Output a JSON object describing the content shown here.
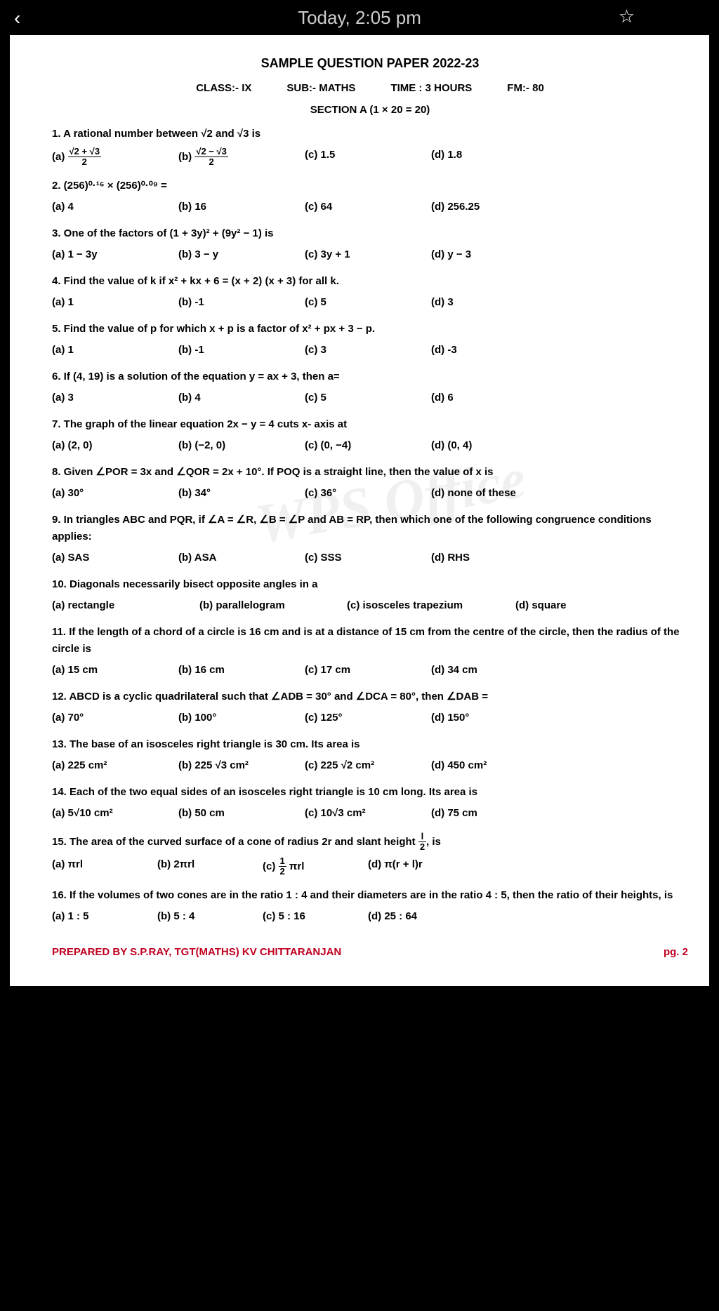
{
  "header": {
    "title": "Today, 2:05 pm"
  },
  "paper": {
    "title": "SAMPLE QUESTION PAPER 2022-23",
    "class": "CLASS:- IX",
    "subject": "SUB:- MATHS",
    "time": "TIME : 3 HOURS",
    "fm": "FM:- 80",
    "section": "SECTION A (1 × 20 = 20)"
  },
  "q1": {
    "text": "1. A rational number between √2 and √3 is",
    "c": "(c) 1.5",
    "d": "(d) 1.8"
  },
  "q2": {
    "text": "2. (256)⁰·¹⁶ × (256)⁰·⁰⁹ =",
    "a": "(a) 4",
    "b": "(b) 16",
    "c": "(c) 64",
    "d": "(d) 256.25"
  },
  "q3": {
    "text": "3. One of the factors of (1 + 3y)² + (9y² − 1) is",
    "a": "(a) 1 − 3y",
    "b": "(b) 3 − y",
    "c": "(c) 3y + 1",
    "d": "(d) y − 3"
  },
  "q4": {
    "text": "4. Find the value of k if x² + kx + 6 = (x + 2) (x + 3) for all k.",
    "a": "(a) 1",
    "b": "(b) -1",
    "c": "(c) 5",
    "d": "(d) 3"
  },
  "q5": {
    "text": "5. Find the value of p for which x + p is a factor of x² + px + 3 − p.",
    "a": "(a) 1",
    "b": "(b) -1",
    "c": "(c) 3",
    "d": "(d) -3"
  },
  "q6": {
    "text": "6. If (4, 19) is a solution of the equation y = ax + 3, then a=",
    "a": "(a) 3",
    "b": "(b) 4",
    "c": "(c) 5",
    "d": "(d) 6"
  },
  "q7": {
    "text": "7. The graph of the linear equation 2x − y = 4 cuts x- axis at",
    "a": "(a) (2, 0)",
    "b": "(b) (−2, 0)",
    "c": "(c) (0, −4)",
    "d": "(d) (0, 4)"
  },
  "q8": {
    "text": "8. Given ∠POR = 3x and ∠QOR = 2x + 10°. If POQ is a straight line, then the value of x is",
    "a": "(a) 30°",
    "b": "(b) 34°",
    "c": "(c) 36°",
    "d": "(d) none of these"
  },
  "q9": {
    "text": "9. In triangles ABC and PQR, if ∠A = ∠R, ∠B = ∠P and AB = RP, then which one of the following congruence conditions applies:",
    "a": "(a) SAS",
    "b": "(b) ASA",
    "c": "(c) SSS",
    "d": "(d) RHS"
  },
  "q10": {
    "text": "10. Diagonals necessarily bisect opposite angles in a",
    "a": "(a) rectangle",
    "b": "(b) parallelogram",
    "c": "(c) isosceles trapezium",
    "d": "(d) square"
  },
  "q11": {
    "text": "11. If the length of a chord of a circle is 16 cm and is at a distance of 15 cm from the centre of the circle, then the radius of the circle is",
    "a": "(a) 15 cm",
    "b": "(b) 16 cm",
    "c": "(c) 17 cm",
    "d": "(d) 34 cm"
  },
  "q12": {
    "text": "12. ABCD is a cyclic quadrilateral such that ∠ADB = 30° and ∠DCA = 80°, then ∠DAB =",
    "a": "(a) 70°",
    "b": "(b) 100°",
    "c": "(c) 125°",
    "d": "(d) 150°"
  },
  "q13": {
    "text": "13. The base of an isosceles right triangle is 30 cm. Its area is",
    "a": "(a) 225 cm²",
    "b": "(b) 225 √3 cm²",
    "c": "(c) 225 √2 cm²",
    "d": "(d) 450 cm²"
  },
  "q14": {
    "text": "14. Each of the two equal sides of an isosceles right triangle is 10 cm long. Its area is",
    "a": "(a) 5√10 cm²",
    "b": "(b) 50 cm",
    "c": "(c) 10√3 cm²",
    "d": "(d) 75 cm"
  },
  "q15": {
    "text_pre": "15. The area of the curved surface of a cone of radius 2r and slant height ",
    "text_post": ", is",
    "a": "(a) πrl",
    "b": "(b) 2πrl",
    "d": "(d) π(r + l)r"
  },
  "q16": {
    "text": "16. If the volumes of two cones are in the ratio 1 : 4 and their diameters are in the ratio 4 : 5, then the ratio of their heights, is",
    "a": "(a) 1 : 5",
    "b": "(b) 5 : 4",
    "c": "(c) 5 : 16",
    "d": "(d) 25 : 64"
  },
  "footer": {
    "prepared": "PREPARED BY S.P.RAY, TGT(MATHS) KV CHITTARANJAN",
    "pg": "pg. 2"
  },
  "watermark": "WPS Office"
}
